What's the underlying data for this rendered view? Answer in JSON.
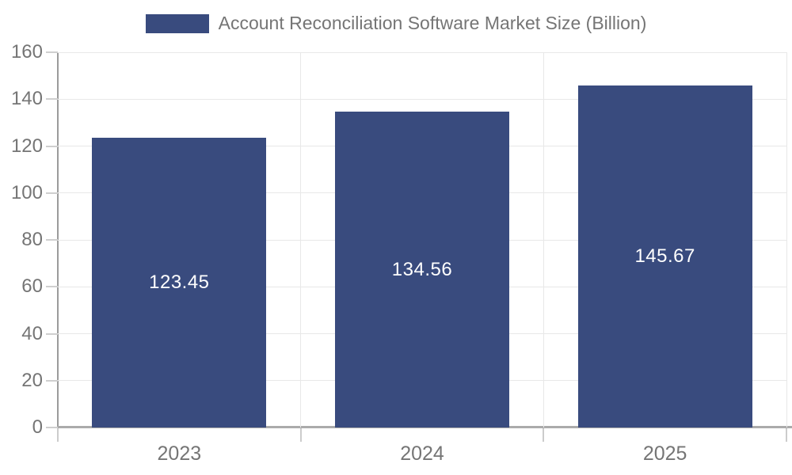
{
  "legend": {
    "label": "Account Reconciliation Software Market Size (Billion)",
    "swatch_color": "#394B7E"
  },
  "chart_data": {
    "type": "bar",
    "title": "Account Reconciliation Software Market Size (Billion)",
    "categories": [
      "2023",
      "2024",
      "2025"
    ],
    "values": [
      123.45,
      134.56,
      145.67
    ],
    "bar_labels": [
      "123.45",
      "134.56",
      "145.67"
    ],
    "xlabel": "",
    "ylabel": "",
    "ylim": [
      0,
      160
    ],
    "yticks": [
      0,
      20,
      40,
      60,
      80,
      100,
      120,
      140,
      160
    ],
    "grid": true,
    "legend_position": "top-center",
    "bar_color": "#394B7E",
    "bar_label_color": "#FFFFFF",
    "axis_text_color": "#757575",
    "gridline_color": "#E8E8E8"
  }
}
